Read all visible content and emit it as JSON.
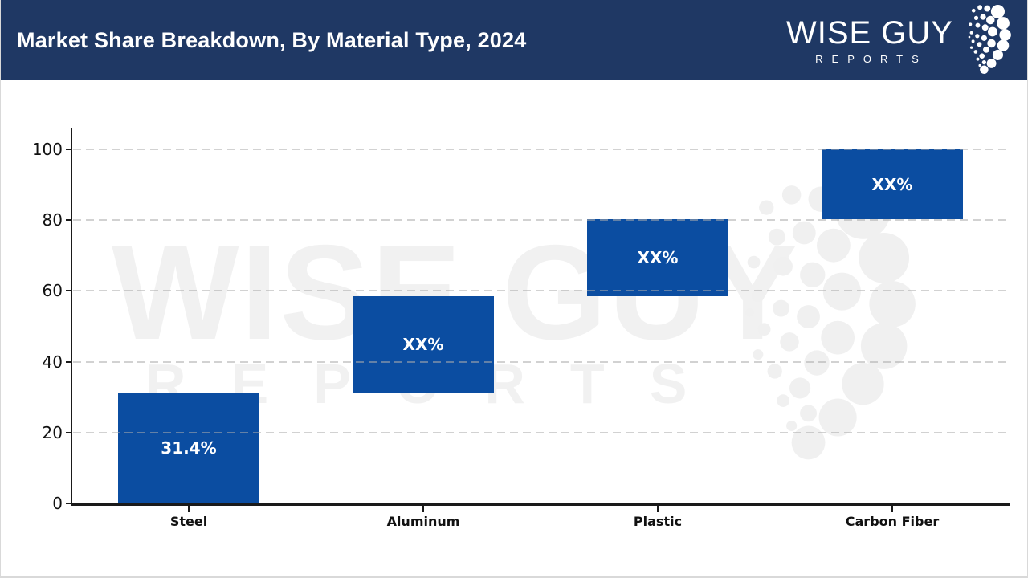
{
  "header": {
    "title": "Market Share Breakdown, By Material Type, 2024",
    "header_bg": "#1f3864",
    "brand": {
      "name": "WISE GUY",
      "sub": "REPORTS"
    }
  },
  "watermark": {
    "line1": "WISE GUY",
    "line2": "REPORTS"
  },
  "chart_data": {
    "type": "bar",
    "subtype": "waterfall",
    "title": "Market Share Breakdown, By Material Type, 2024",
    "categories": [
      "Steel",
      "Aluminum",
      "Plastic",
      "Carbon Fiber"
    ],
    "series": [
      {
        "name": "Market Share (%)",
        "segments": [
          {
            "category": "Steel",
            "start": 0,
            "end": 31.4,
            "label": "31.4%"
          },
          {
            "category": "Aluminum",
            "start": 31.4,
            "end": 58.6,
            "label": "XX%"
          },
          {
            "category": "Plastic",
            "start": 58.6,
            "end": 80.2,
            "label": "XX%"
          },
          {
            "category": "Carbon Fiber",
            "start": 80.2,
            "end": 100,
            "label": "XX%"
          }
        ]
      }
    ],
    "xlabel": "",
    "ylabel": "",
    "yticks": [
      0,
      20,
      40,
      60,
      80,
      100
    ],
    "ytick_labels": [
      "0",
      "20",
      "40",
      "60",
      "80",
      "100"
    ],
    "ylim": [
      0,
      106
    ],
    "grid": "horizontal-dashed",
    "gridline_color": "#d8d8d8",
    "bar_color": "#0b4da1",
    "bar_label_color": "#ffffff",
    "axis_color": "#1a1a1a",
    "legend": "none"
  }
}
